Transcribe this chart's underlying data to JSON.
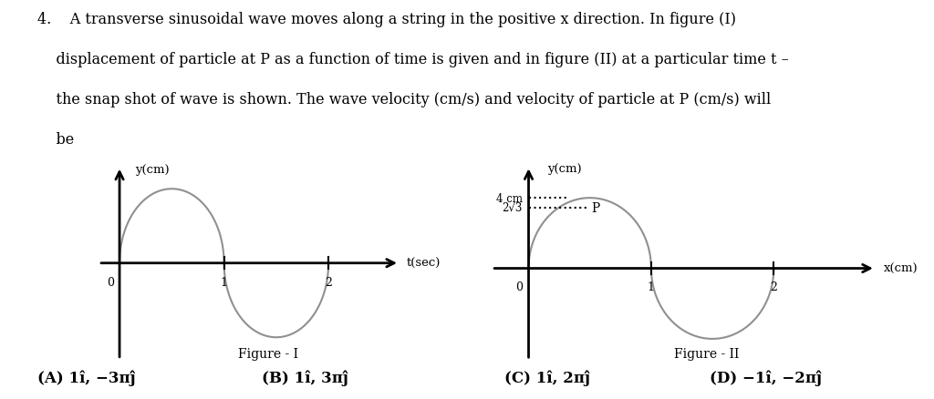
{
  "fig1_xlabel": "t(sec)",
  "fig1_ylabel": "y(cm)",
  "fig1_label_0": "0",
  "fig1_label_1": "1",
  "fig1_label_2": "2",
  "fig1_caption": "Figure - I",
  "fig2_xlabel": "x(cm)",
  "fig2_ylabel": "y(cm)",
  "fig2_label_0": "0",
  "fig2_label_1": "1",
  "fig2_label_2": "2",
  "fig2_label_4cm": "4 cm",
  "fig2_label_2sqrt3": "2√3",
  "fig2_label_P": "P",
  "fig2_caption": "Figure - II",
  "wave_color": "#909090",
  "axis_color": "#000000",
  "bg_color": "#ffffff",
  "text_color": "#000000",
  "q_line1": "4.    A transverse sinusoidal wave moves along a string in the positive x direction. In figure (I)",
  "q_line2": "    displacement of particle at P as a function of time is given and in figure (II) at a particular time t –",
  "q_line3": "    the snap shot of wave is shown. The wave velocity (cm/s) and velocity of particle at P (cm/s) will",
  "q_line4": "    be",
  "ans_A_pre": "(A) 1",
  "ans_A_hat_i": "î",
  "ans_A_mid": ",−3π",
  "ans_A_hat_j": "ĵ",
  "ans_B_pre": "(B) 1",
  "ans_B_hat_i": "î",
  "ans_B_mid": ",3π",
  "ans_B_hat_j": "ĵ",
  "ans_C_pre": "(C) 1",
  "ans_C_hat_i": "î",
  "ans_C_mid": ",2π",
  "ans_C_hat_j": "ĵ",
  "ans_D_pre": "(D) −1",
  "ans_D_hat_i": "î",
  "ans_D_mid": ",−2π",
  "ans_D_hat_j": "ĵ"
}
